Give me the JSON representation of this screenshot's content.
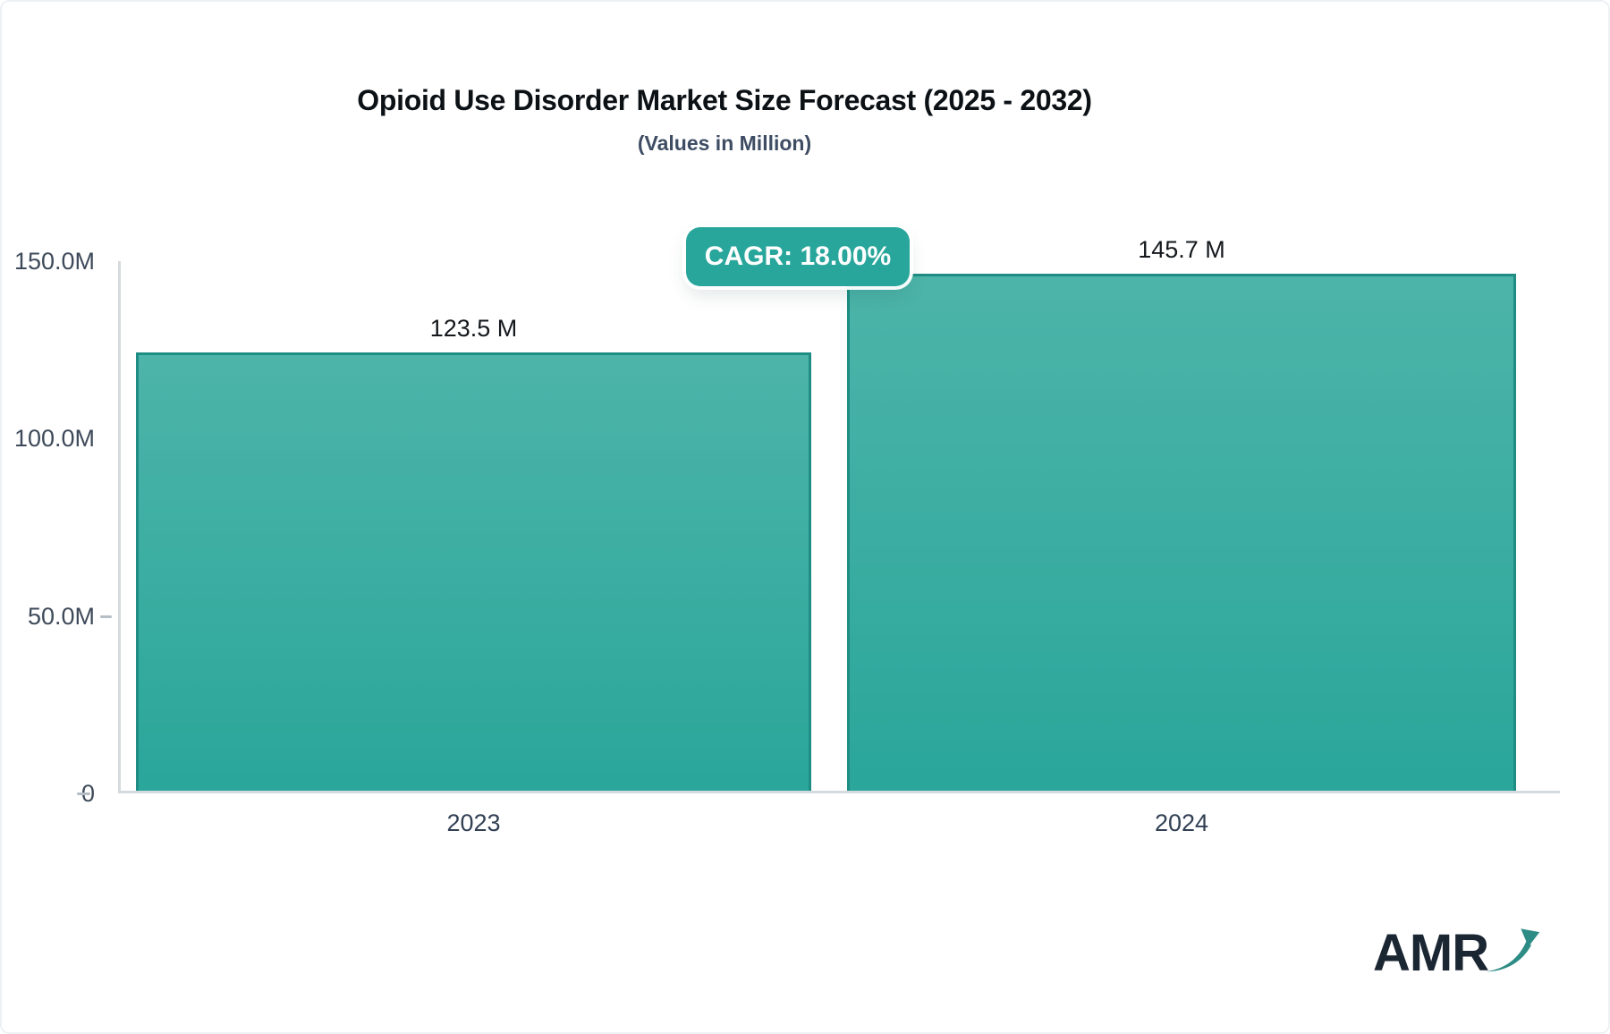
{
  "header": {
    "title": "Opioid Use Disorder Market Size Forecast (2025 - 2032)",
    "subtitle": "(Values in Million)"
  },
  "badge": {
    "label": "CAGR: 18.00%"
  },
  "chart_data": {
    "type": "bar",
    "title": "Opioid Use Disorder Market Size Forecast (2025 - 2032)",
    "subtitle": "(Values in Million)",
    "unit": "Million",
    "categories": [
      "2023",
      "2024"
    ],
    "values": [
      123.5,
      145.7
    ],
    "value_labels": [
      "123.5 M",
      "145.7 M"
    ],
    "cagr": "18.00%",
    "ylim": [
      0,
      150
    ],
    "y_tick_labels_top_to_bottom": [
      "150.0M",
      "100.0M",
      "50.0M",
      "0"
    ],
    "grid": "off",
    "legend": "none"
  },
  "colors": {
    "badge_teal": "#29a69b",
    "bar_gradient_top": "#4db4a9",
    "bar_gradient_bottom": "#2aa69a",
    "bar_border": "#1f8d83",
    "axis_gray": "#d4dade",
    "tick_label": "#3e4a5a",
    "logo_navy": "#1b2633",
    "logo_arrow_teal": "#2d8c85"
  },
  "logo": {
    "text": "AMR"
  }
}
